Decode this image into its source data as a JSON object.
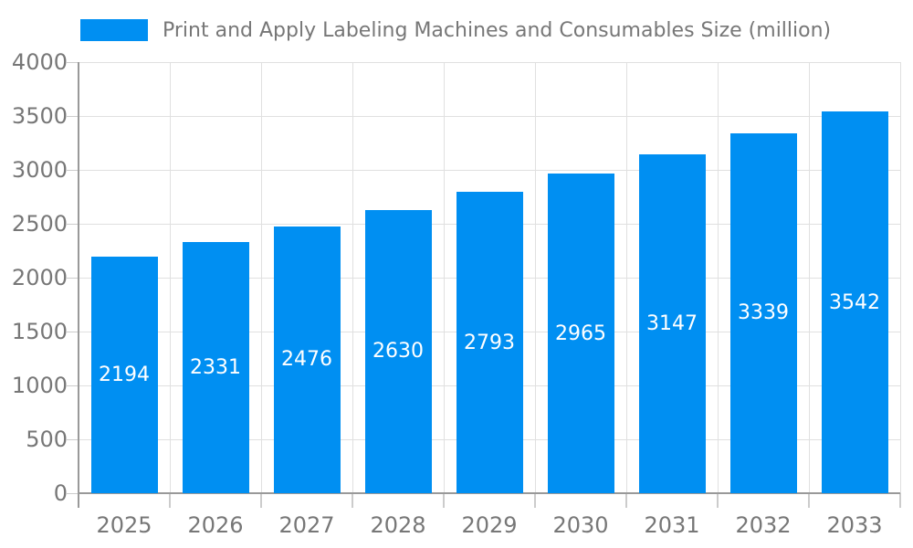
{
  "legend": {
    "label": "Print and Apply Labeling Machines and Consumables Size (million)"
  },
  "chart_data": {
    "type": "bar",
    "title": "Print and Apply Labeling Machines and Consumables Size (million)",
    "categories": [
      "2025",
      "2026",
      "2027",
      "2028",
      "2029",
      "2030",
      "2031",
      "2032",
      "2033"
    ],
    "values": [
      2194,
      2331,
      2476,
      2630,
      2793,
      2965,
      3147,
      3339,
      3542
    ],
    "xlabel": "",
    "ylabel": "",
    "ylim": [
      0,
      4000
    ],
    "ytick_step": 500,
    "yticks": [
      "0",
      "500",
      "1000",
      "1500",
      "2000",
      "2500",
      "3000",
      "3500",
      "4000"
    ],
    "grid": true,
    "legend_position": "top-left",
    "value_label_position": "inside-center"
  },
  "colors": {
    "bar_fill": "#008FF2",
    "grid_line": "#E0E0E0",
    "axis_line": "#999999",
    "tick_line": "#CCCCCC",
    "text_muted": "#777777",
    "value_label_text": "#FFFFFF",
    "background": "#FFFFFF"
  }
}
